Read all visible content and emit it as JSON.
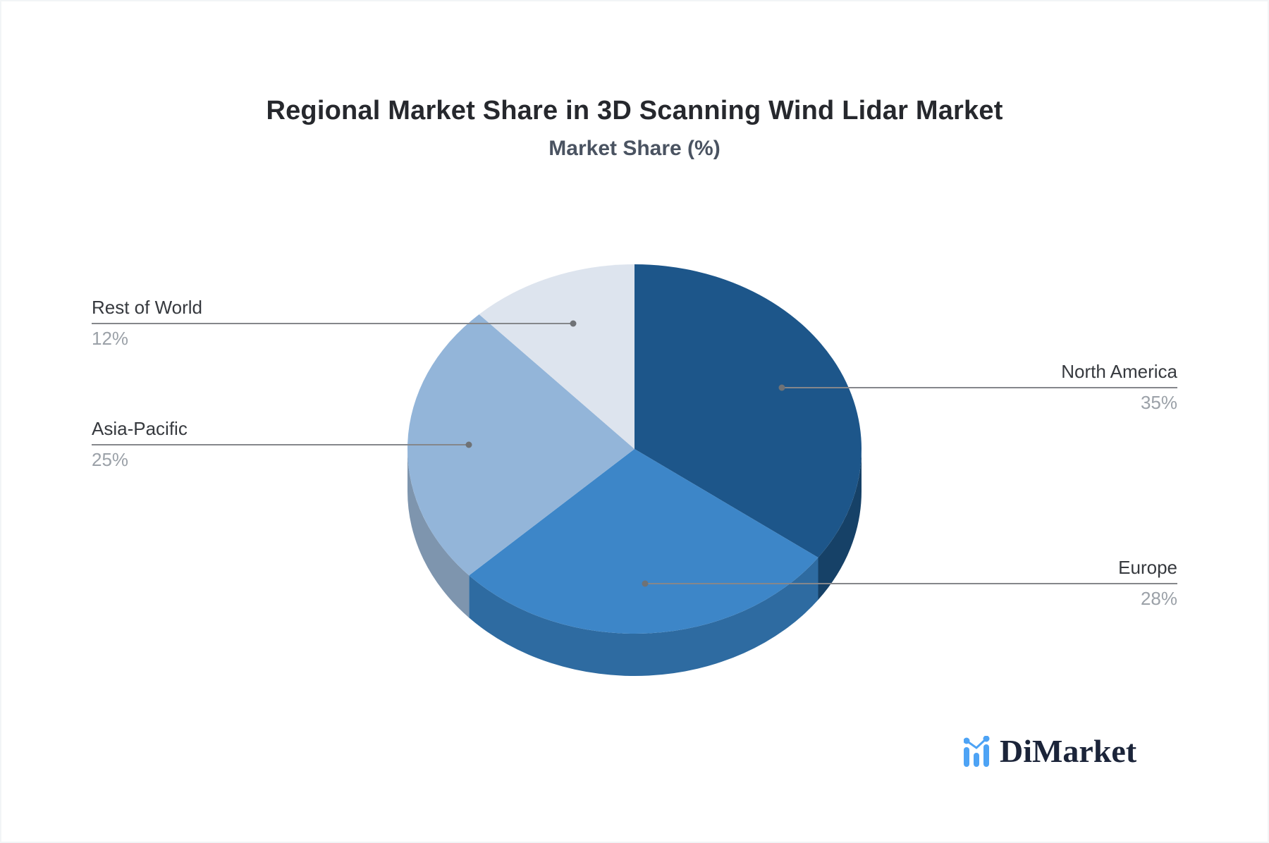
{
  "chart_data": {
    "type": "pie",
    "style": "3d",
    "title": "Regional Market Share in 3D Scanning Wind Lidar Market",
    "subtitle": "Market Share (%)",
    "unit": "%",
    "start_angle_deg": 0,
    "direction": "clockwise",
    "legend_position": "callout-labels",
    "slices": [
      {
        "label": "North America",
        "value": 35,
        "pct_label": "35%",
        "color": "#1D568A",
        "depth_color": "#164167",
        "label_side": "right"
      },
      {
        "label": "Europe",
        "value": 28,
        "pct_label": "28%",
        "color": "#3D86C8",
        "depth_color": "#2E6BA1",
        "label_side": "right"
      },
      {
        "label": "Asia-Pacific",
        "value": 25,
        "pct_label": "25%",
        "color": "#93B5D9",
        "depth_color": "#7E95AE",
        "label_side": "left"
      },
      {
        "label": "Rest of World",
        "value": 12,
        "pct_label": "12%",
        "color": "#DDE4EE",
        "depth_color": "#B9C5D3",
        "label_side": "left"
      }
    ],
    "callout_colors": {
      "line": "#85878b",
      "dot": "#6f7276",
      "name_text": "#36393e",
      "pct_text": "#9ba1a8"
    }
  },
  "watermark": {
    "brand": "DiMarket",
    "icon": "bar-chart-logo-icon",
    "icon_color": "#4DA3F5",
    "text_color": "#1B2439"
  }
}
